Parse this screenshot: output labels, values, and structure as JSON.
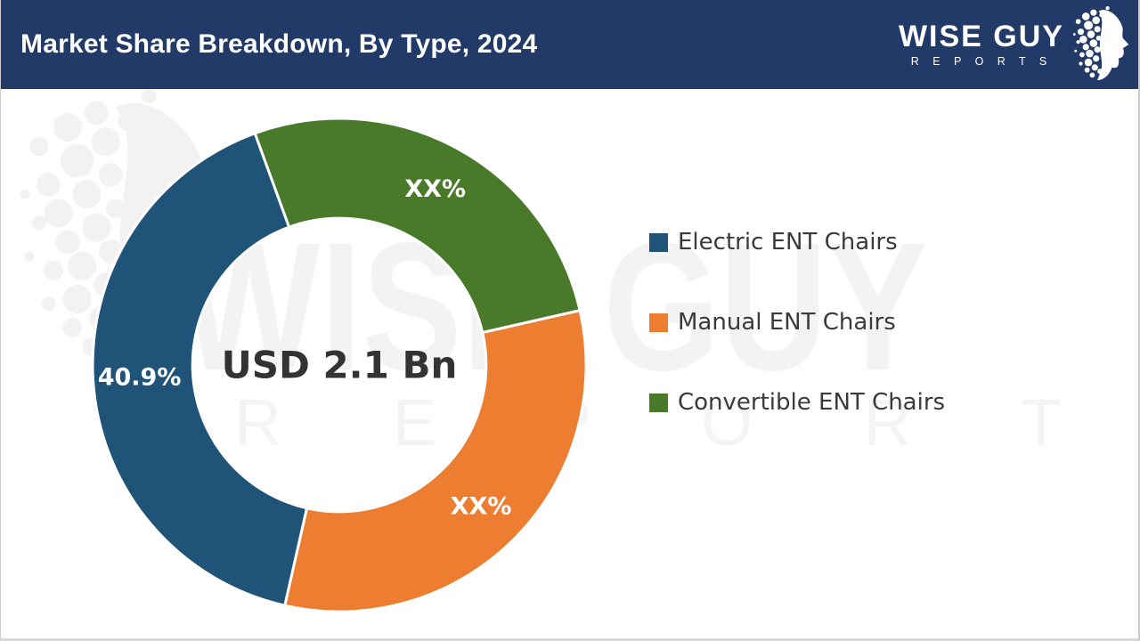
{
  "header": {
    "title": "Market Share Breakdown, By Type, 2024",
    "bg_color": "#213A67",
    "logo": {
      "line1": "WISE GUY",
      "line2": "R E P O R T S",
      "face_icon": "dotted-head-profile-icon"
    }
  },
  "chart_data": {
    "type": "pie",
    "subtype": "donut",
    "title": "Market Share Breakdown, By Type, 2024",
    "center_label": "USD 2.1 Bn",
    "start_angle_deg": 110,
    "direction": "counterclockwise",
    "inner_radius_ratio": 0.595,
    "legend_position": "right",
    "segments": [
      {
        "name": "Electric ENT Chairs",
        "value": 40.9,
        "label": "40.9%",
        "color": "#1F5377"
      },
      {
        "name": "Manual ENT Chairs",
        "value": 32.1,
        "label": "XX%",
        "color": "#ED7D31"
      },
      {
        "name": "Convertible ENT Chairs",
        "value": 27.0,
        "label": "XX%",
        "color": "#487A29"
      }
    ]
  },
  "watermark": {
    "line1": "WISE GUY",
    "line2": "R E P O R T S"
  },
  "colors": {
    "header_bg": "#213A67",
    "center_text": "#333333",
    "legend_text": "#3A3A3A",
    "watermark": "#F3F3F3",
    "slice_separator": "#FFFFFF"
  }
}
